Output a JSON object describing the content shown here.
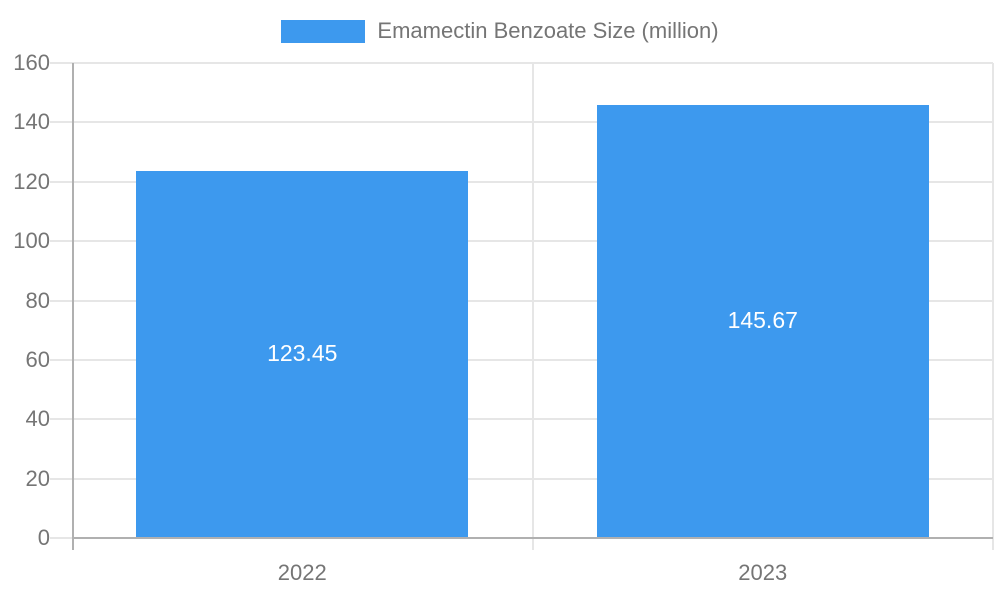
{
  "legend": {
    "label": "Emamectin Benzoate Size (million)"
  },
  "chart_data": {
    "type": "bar",
    "title": "",
    "categories": [
      "2022",
      "2023"
    ],
    "series": [
      {
        "name": "Emamectin Benzoate Size (million)",
        "values": [
          123.45,
          145.67
        ]
      }
    ],
    "value_labels": [
      "123.45",
      "145.67"
    ],
    "ylabel": "",
    "xlabel": "",
    "ylim": [
      0,
      160
    ],
    "ytick_step": 20,
    "ytick_labels": [
      "0",
      "20",
      "40",
      "60",
      "80",
      "100",
      "120",
      "140",
      "160"
    ],
    "grid": true,
    "legend_position": "top",
    "bar_color": "#3D99EE",
    "bar_width_fraction": 0.72,
    "colors": {
      "grid": "#e6e6e6",
      "axis": "#b0b0b0",
      "text": "#757575",
      "value_label": "#ffffff",
      "background": "#ffffff"
    }
  }
}
